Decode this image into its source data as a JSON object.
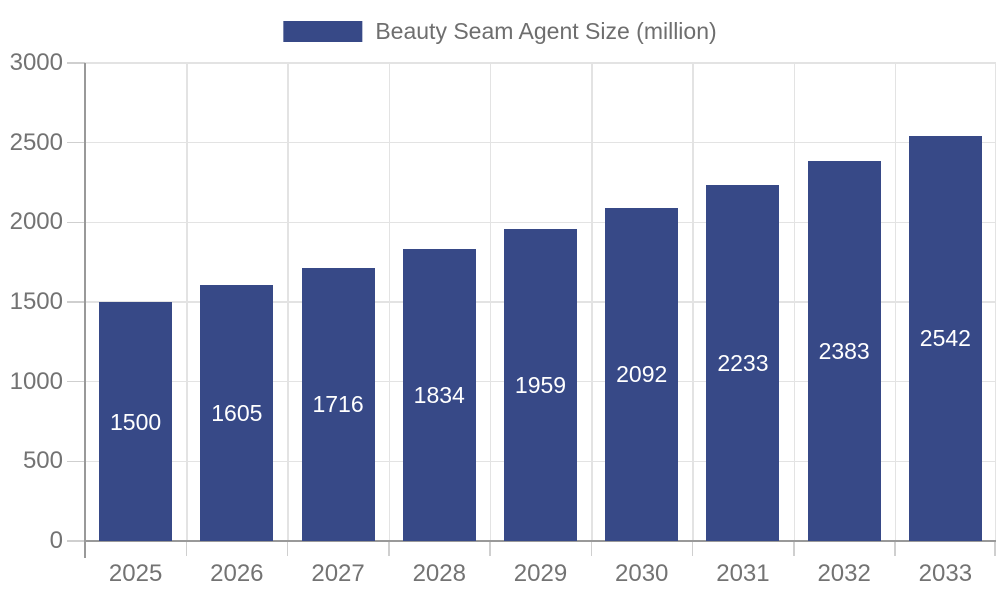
{
  "legend": {
    "label": "Beauty Seam Agent Size (million)"
  },
  "chart_data": {
    "type": "bar",
    "title": "Beauty Seam Agent Size (million)",
    "categories": [
      "2025",
      "2026",
      "2027",
      "2028",
      "2029",
      "2030",
      "2031",
      "2032",
      "2033"
    ],
    "series": [
      {
        "name": "Beauty Seam Agent Size (million)",
        "values": [
          1500,
          1605,
          1716,
          1834,
          1959,
          2092,
          2233,
          2383,
          2542
        ]
      }
    ],
    "xlabel": "",
    "ylabel": "",
    "ylim": [
      0,
      3000
    ],
    "y_ticks": [
      0,
      500,
      1000,
      1500,
      2000,
      2500,
      3000
    ],
    "grid": true,
    "legend_position": "top-center",
    "value_labels": "centered-inside-bars",
    "colors": {
      "bar": "#374987",
      "value_label": "#ffffff",
      "axis_label": "#737373",
      "legend_text": "#6e6e6e",
      "gridline": "#e3e3e3",
      "axis_line": "#999999",
      "tick": "#cfcfcf"
    }
  }
}
